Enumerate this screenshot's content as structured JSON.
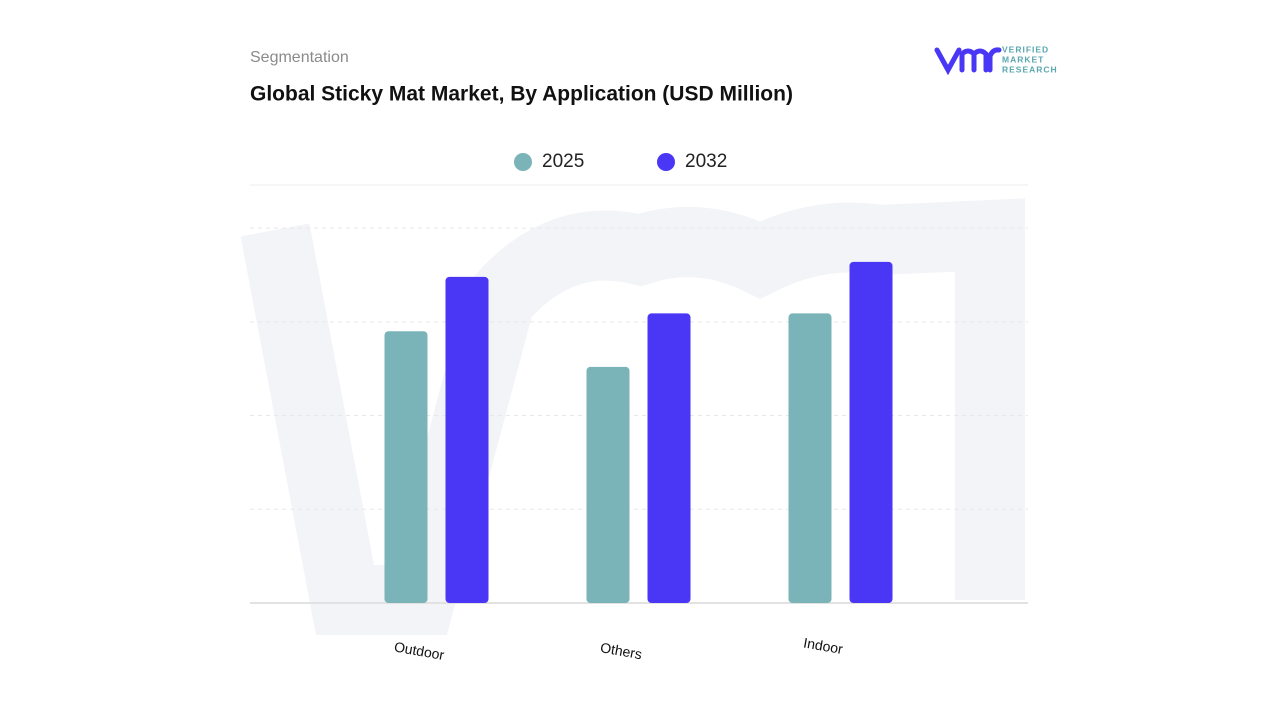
{
  "header": {
    "subtitle": "Segmentation"
  },
  "logo": {
    "line1": "VERIFIED",
    "line2": "MARKET",
    "line3": "RESEARCH"
  },
  "chart_data": {
    "type": "bar",
    "title": "Global Sticky Mat Market, By Application (USD Million)",
    "categories": [
      "Outdoor",
      "Others",
      "Indoor"
    ],
    "series": [
      {
        "name": "2025",
        "color": "#7ab3b8",
        "values": [
          2.9,
          2.52,
          3.09
        ]
      },
      {
        "name": "2032",
        "color": "#4a36f5",
        "values": [
          3.48,
          3.09,
          3.64
        ]
      }
    ],
    "ylim": [
      0,
      4.46
    ],
    "yticks": [
      0,
      1,
      2,
      3,
      4
    ],
    "grid": true
  }
}
